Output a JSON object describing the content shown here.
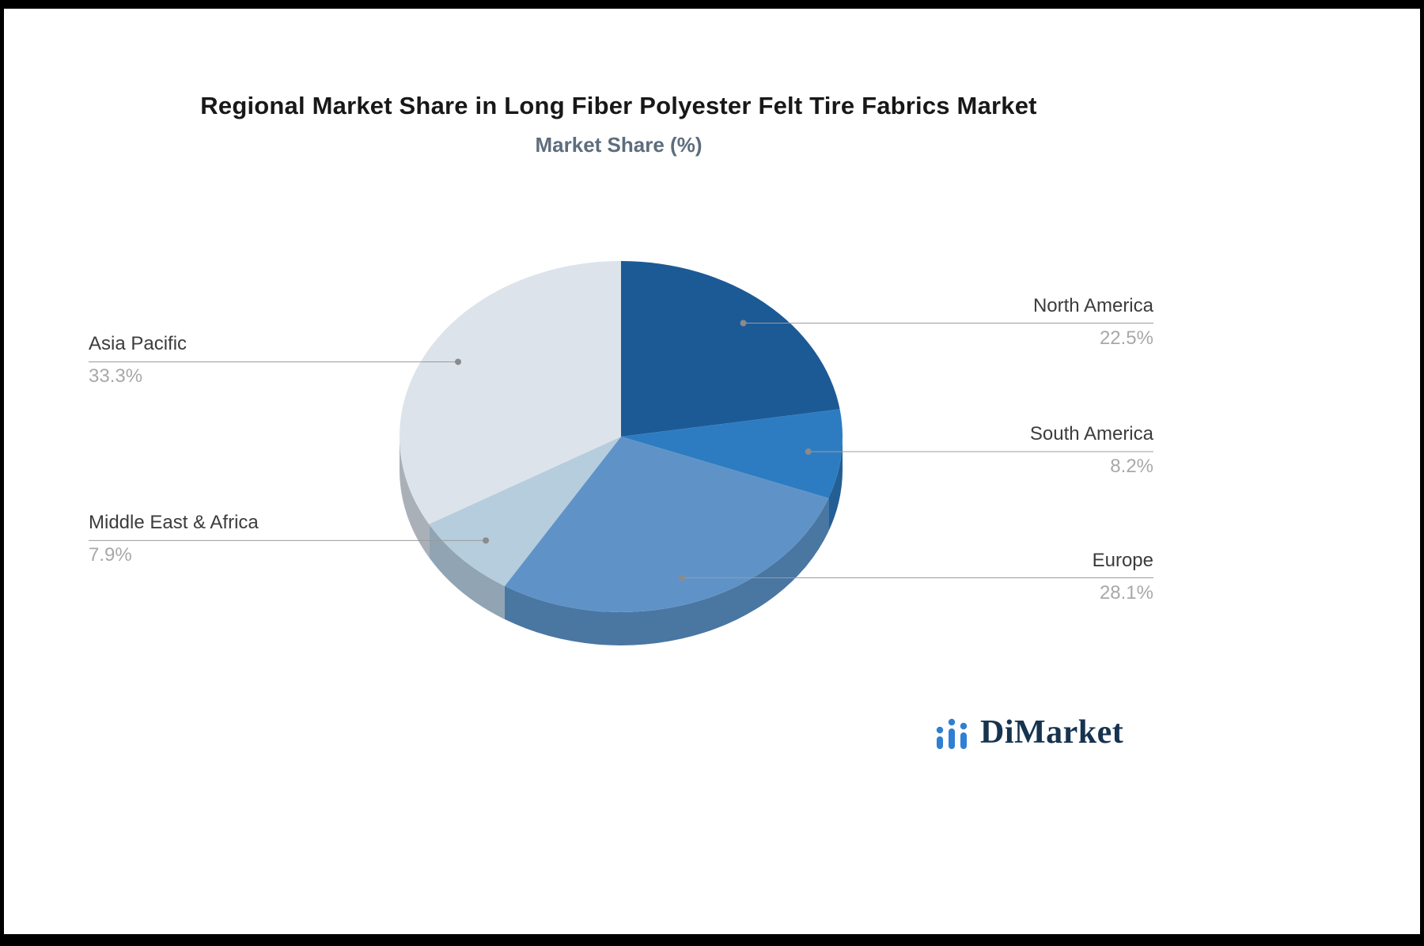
{
  "page": {
    "title": "Regional Market Share in Long Fiber Polyester Felt Tire Fabrics Market",
    "subtitle": "Market Share (%)"
  },
  "brand": {
    "name": "DiMarket",
    "icon": "bar-chart-dots-icon",
    "accent": "#2f7fd3",
    "text_color": "#16334f"
  },
  "chart_data": {
    "type": "pie",
    "style": "3d",
    "title": "Regional Market Share in Long Fiber Polyester Felt Tire Fabrics Market",
    "subtitle": "Market Share (%)",
    "unit": "%",
    "start_angle_deg": 0,
    "direction": "clockwise",
    "legend_position": "callout-labels",
    "slices": [
      {
        "label": "North America",
        "value": 22.5,
        "value_label": "22.5%",
        "color": "#1c5a96",
        "side_color": "#16476f"
      },
      {
        "label": "South America",
        "value": 8.2,
        "value_label": "8.2%",
        "color": "#2d7cc1",
        "side_color": "#235f94"
      },
      {
        "label": "Europe",
        "value": 28.1,
        "value_label": "28.1%",
        "color": "#5f93c8",
        "side_color": "#4a76a2"
      },
      {
        "label": "Middle East & Africa",
        "value": 7.9,
        "value_label": "7.9%",
        "color": "#b6cdde",
        "side_color": "#90a4b3"
      },
      {
        "label": "Asia Pacific",
        "value": 33.3,
        "value_label": "33.3%",
        "color": "#dde3ea",
        "side_color": "#aab0b8"
      }
    ]
  }
}
